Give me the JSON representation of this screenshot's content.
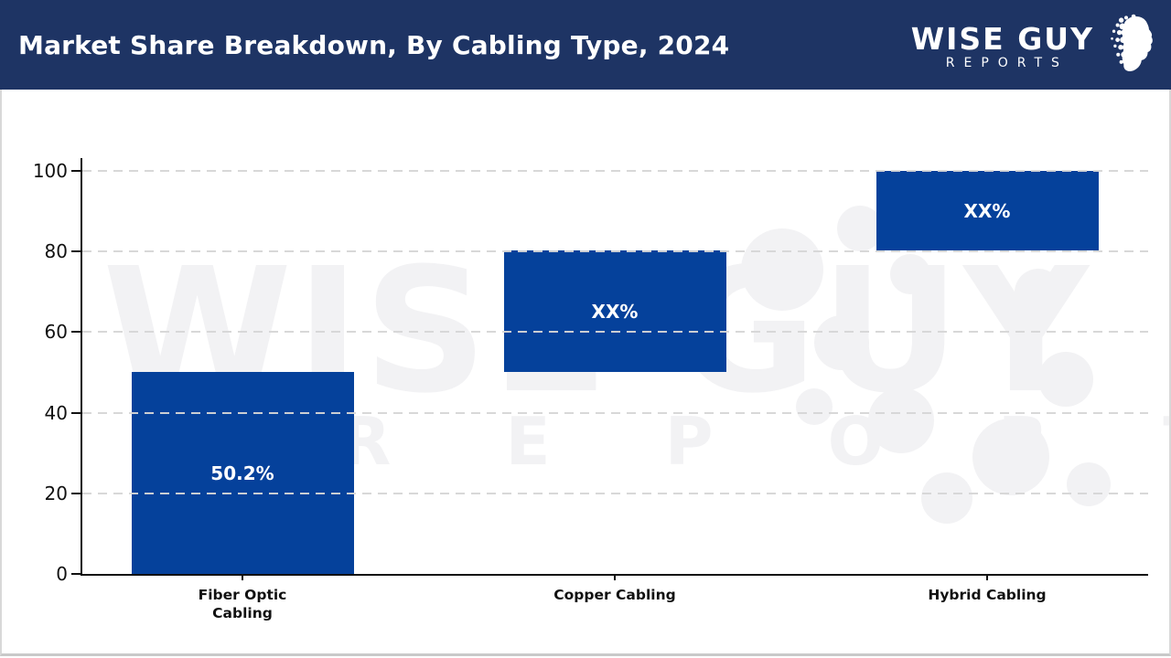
{
  "header": {
    "title": "Market Share Breakdown, By Cabling Type, 2024",
    "logo": {
      "line1": "WISE GUY",
      "line2": "REPORTS"
    }
  },
  "watermark": {
    "line1": "WISE GUY",
    "line2": "R E P O R T S"
  },
  "colors": {
    "header_bg": "#1e3464",
    "bar": "#05419b",
    "bar_label_text": "#ffffff",
    "axis": "#111111",
    "gridline": "#d6d6d6",
    "watermark": "#f2f2f4"
  },
  "chart_data": {
    "type": "bar",
    "subtype": "waterfall",
    "title": "Market Share Breakdown, By Cabling Type, 2024",
    "categories": [
      "Fiber Optic\nCabling",
      "Copper Cabling",
      "Hybrid Cabling"
    ],
    "bars": [
      {
        "category": "Fiber Optic Cabling",
        "start": 0,
        "end": 50.2,
        "label": "50.2%"
      },
      {
        "category": "Copper Cabling",
        "start": 50.2,
        "end": 80.3,
        "label": "XX%"
      },
      {
        "category": "Hybrid Cabling",
        "start": 80.3,
        "end": 100,
        "label": "XX%"
      }
    ],
    "xlabel": "",
    "ylabel": "",
    "ylim": [
      0,
      100
    ],
    "yticks": [
      0,
      20,
      40,
      60,
      80,
      100
    ],
    "grid": "horizontal-dashed",
    "legend": null
  }
}
